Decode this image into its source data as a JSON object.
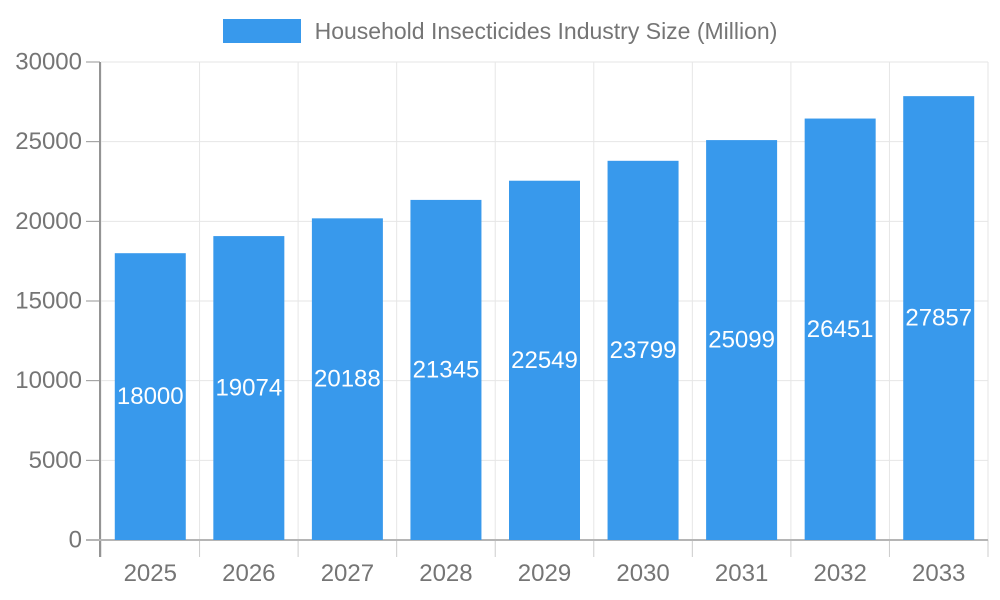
{
  "chart_data": {
    "type": "bar",
    "title": "",
    "xlabel": "",
    "ylabel": "",
    "categories": [
      "2025",
      "2026",
      "2027",
      "2028",
      "2029",
      "2030",
      "2031",
      "2032",
      "2033"
    ],
    "series": [
      {
        "name": "Household Insecticides Industry Size (Million)",
        "values": [
          18000,
          19074,
          20188,
          21345,
          22549,
          23799,
          25099,
          26451,
          27857
        ]
      }
    ],
    "bar_value_labels_shown": true,
    "ylim": [
      0,
      30000
    ],
    "ytick_step": 5000,
    "yticks": [
      0,
      5000,
      10000,
      15000,
      20000,
      25000,
      30000
    ],
    "grid": true,
    "legend_position": "top",
    "colors": {
      "bar": "#3899EC",
      "axis_label_text": "#757575",
      "bar_label_text": "#FFFFFF",
      "gridline": "#E6E6E6",
      "y_axis_line": "#949494",
      "x_axis_line": "#B5B5B5",
      "x_tick": "#CCCCCC",
      "background": "#FFFFFF"
    }
  }
}
